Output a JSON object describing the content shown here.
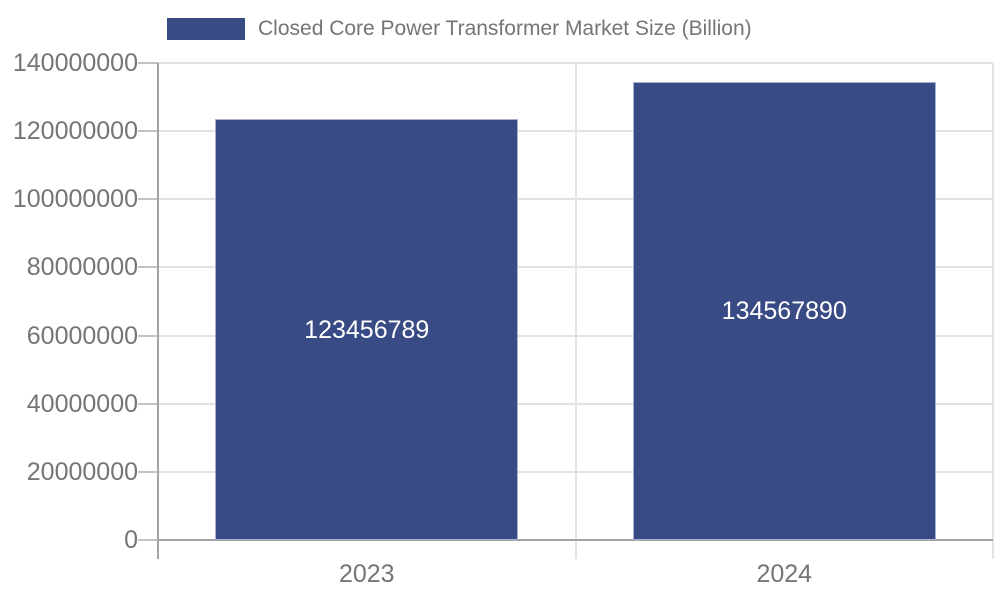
{
  "chart_data": {
    "type": "bar",
    "title": "Closed Core Power Transformer Market Size (Billion)",
    "legend": {
      "position": "top-left",
      "entries": [
        {
          "label": "Closed Core Power Transformer Market Size (Billion)",
          "color": "#394B85"
        }
      ]
    },
    "categories": [
      "2023",
      "2024"
    ],
    "series": [
      {
        "name": "Closed Core Power Transformer Market Size (Billion)",
        "values": [
          123456789,
          134567890
        ]
      }
    ],
    "bar_value_labels": [
      "123456789",
      "134567890"
    ],
    "xlabel": "",
    "ylabel": "",
    "ylim": [
      0,
      140000000
    ],
    "yticks": {
      "values": [
        0,
        20000000,
        40000000,
        60000000,
        80000000,
        100000000,
        120000000,
        140000000
      ],
      "labels": [
        "0",
        "20000000",
        "40000000",
        "60000000",
        "80000000",
        "100000000",
        "120000000",
        "140000000"
      ]
    },
    "grid": true,
    "colors": {
      "bar": "#394B85",
      "bar_border": "#A7B0D4",
      "bar_label": "#FFFFFF",
      "grid": "#E3E3E3",
      "axis": "#A3A3A3",
      "tick": "#C2C2C2",
      "tick_label": "#757575",
      "legend_text": "#757575",
      "background": "#FFFFFF"
    }
  }
}
